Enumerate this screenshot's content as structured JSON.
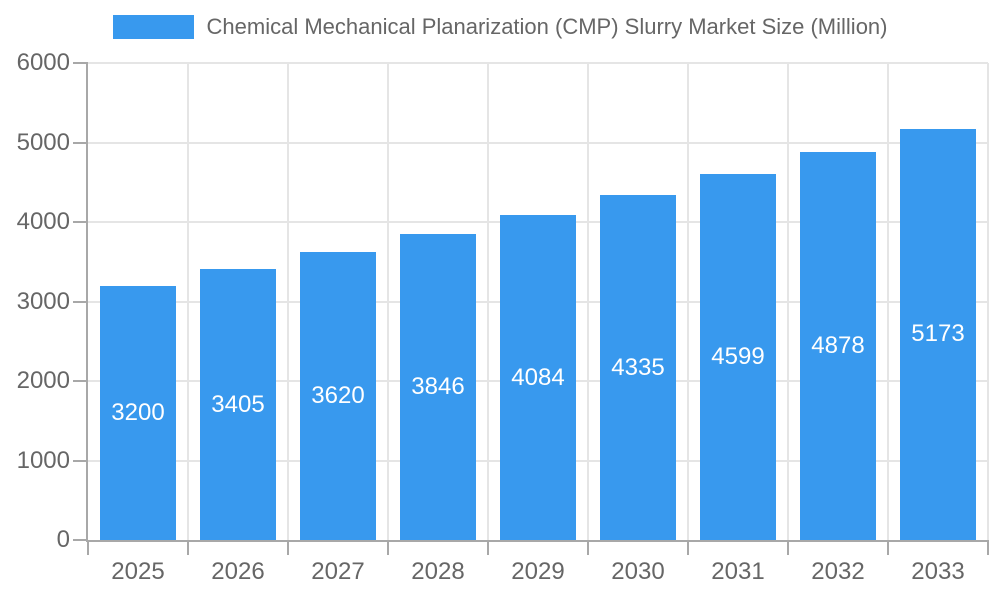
{
  "legend": {
    "swatch_icon": "series-color-swatch",
    "label": "Chemical Mechanical Planarization (CMP) Slurry Market Size (Million)"
  },
  "chart_data": {
    "type": "bar",
    "title": "Chemical Mechanical Planarization (CMP) Slurry Market Size (Million)",
    "categories": [
      "2025",
      "2026",
      "2027",
      "2028",
      "2029",
      "2030",
      "2031",
      "2032",
      "2033"
    ],
    "values": [
      3200,
      3405,
      3620,
      3846,
      4084,
      4335,
      4599,
      4878,
      5173
    ],
    "xlabel": "",
    "ylabel": "",
    "ylim": [
      0,
      6000
    ],
    "yticks": [
      0,
      1000,
      2000,
      3000,
      4000,
      5000,
      6000
    ],
    "grid": true,
    "legend_position": "top",
    "value_labels": "inside-center",
    "colors": {
      "bar": "#3899EE",
      "grid": "#e5e5e5",
      "axis": "#a8a8a8",
      "text": "#666666",
      "value_label": "#ffffff",
      "background": "#ffffff"
    }
  }
}
